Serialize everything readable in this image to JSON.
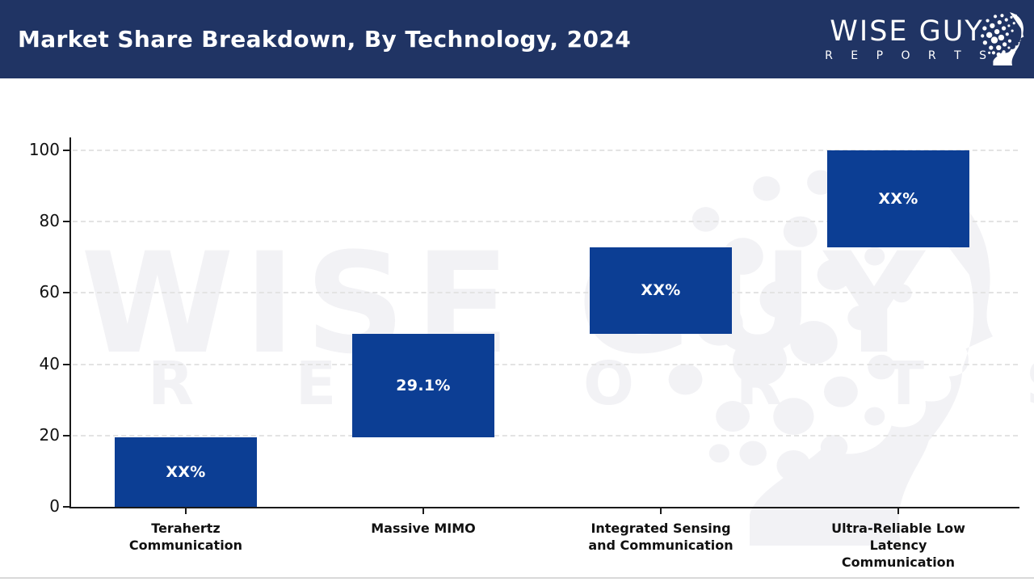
{
  "header": {
    "title": "Market Share Breakdown, By Technology, 2024",
    "logo_line1": "WISE GUY",
    "logo_line2": "R E P O R T S"
  },
  "watermark": {
    "big_text": "WISE GUY",
    "small_text": "R E P O R T S"
  },
  "colors": {
    "header_bg": "#203464",
    "bar": "#0C3E94",
    "gridline": "#E3E3E3",
    "axis": "#1A1A1A",
    "watermark": "#F2F2F5",
    "value_label": "#FFFFFF"
  },
  "chart_data": {
    "type": "bar",
    "variant": "waterfall",
    "title": "Market Share Breakdown, By Technology, 2024",
    "xlabel": "",
    "ylabel": "",
    "categories": [
      "Terahertz Communication",
      "Massive MIMO",
      "Integrated Sensing and Communication",
      "Ultra-Reliable Low Latency Communication"
    ],
    "category_lines": [
      [
        "Terahertz",
        "Communication"
      ],
      [
        "Massive MIMO"
      ],
      [
        "Integrated Sensing",
        "and Communication"
      ],
      [
        "Ultra-Reliable Low",
        "Latency",
        "Communication"
      ]
    ],
    "bar_labels": [
      "XX%",
      "29.1%",
      "XX%",
      "XX%"
    ],
    "segments": [
      {
        "category": "Terahertz Communication",
        "start": 0,
        "end": 19.5,
        "value_shown": "XX%"
      },
      {
        "category": "Massive MIMO",
        "start": 19.5,
        "end": 48.6,
        "value_shown": "29.1%"
      },
      {
        "category": "Integrated Sensing and Communication",
        "start": 48.6,
        "end": 72.8,
        "value_shown": "XX%"
      },
      {
        "category": "Ultra-Reliable Low Latency Communication",
        "start": 72.8,
        "end": 100,
        "value_shown": "XX%"
      }
    ],
    "values_estimated": [
      19.5,
      29.1,
      24.2,
      27.2
    ],
    "ylim": [
      0,
      100
    ],
    "yticks": [
      0,
      20,
      40,
      60,
      80,
      100
    ],
    "ytick_labels": [
      "0",
      "20",
      "40",
      "60",
      "80",
      "100"
    ],
    "grid": "horizontal dashed",
    "legend": "none",
    "bar_color": "#0C3E94",
    "value_label_color": "#FFFFFF"
  }
}
